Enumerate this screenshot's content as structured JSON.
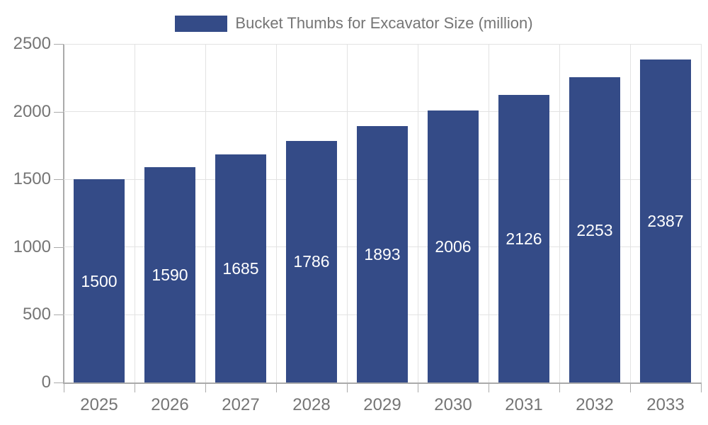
{
  "legend": {
    "label": "Bucket Thumbs for Excavator Size (million)"
  },
  "chart_data": {
    "type": "bar",
    "title": "Bucket Thumbs for Excavator Size (million)",
    "categories": [
      "2025",
      "2026",
      "2027",
      "2028",
      "2029",
      "2030",
      "2031",
      "2032",
      "2033"
    ],
    "values": [
      1500,
      1590,
      1685,
      1786,
      1893,
      2006,
      2126,
      2253,
      2387
    ],
    "xlabel": "",
    "ylabel": "",
    "ylim": [
      0,
      2500
    ],
    "yticks": [
      0,
      500,
      1000,
      1500,
      2000,
      2500
    ],
    "grid": true,
    "legend_position": "top-center",
    "value_labels": "inside-center",
    "colors": {
      "bar": "#344b87",
      "value_label": "#ffffff",
      "tick_label": "#757575",
      "gridline": "#e2e2e2",
      "axis": "#aaaaaa"
    }
  }
}
